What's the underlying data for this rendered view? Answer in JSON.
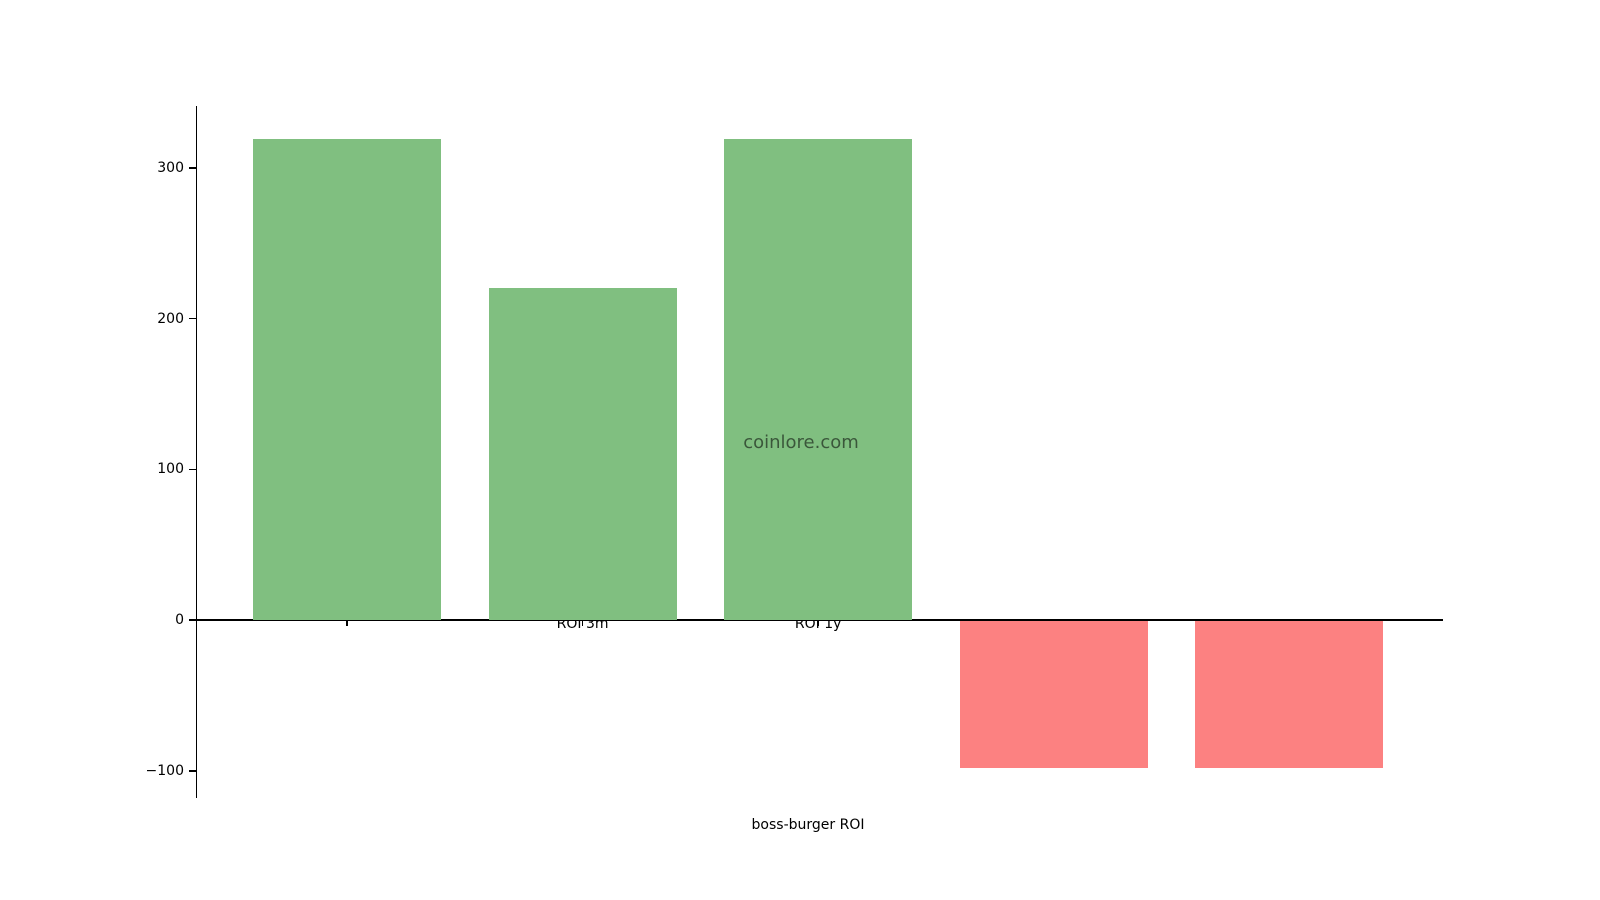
{
  "page": {
    "background_color": "#ffffff"
  },
  "chart_data": {
    "type": "bar",
    "title": "",
    "xlabel": "boss-burger ROI",
    "ylabel": "",
    "watermark": "coinlore.com",
    "categories": [
      "",
      "ROI 3m",
      "ROI 1y",
      "",
      ""
    ],
    "values": [
      319,
      220,
      319,
      -98,
      -98
    ],
    "yticks": [
      {
        "value": 300,
        "label": "300"
      },
      {
        "value": 200,
        "label": "200"
      },
      {
        "value": 100,
        "label": "100"
      },
      {
        "value": 0,
        "label": "0"
      },
      {
        "value": -100,
        "label": "−100"
      }
    ],
    "ylim": [
      -118,
      341
    ],
    "grid": false,
    "legend_position": "none",
    "colors": {
      "positive_bar": "#80bf80",
      "negative_bar": "#fc8181",
      "axis": "#000000",
      "tick_text": "#000000",
      "watermark_text": "rgba(0,0,0,0.55)"
    }
  }
}
